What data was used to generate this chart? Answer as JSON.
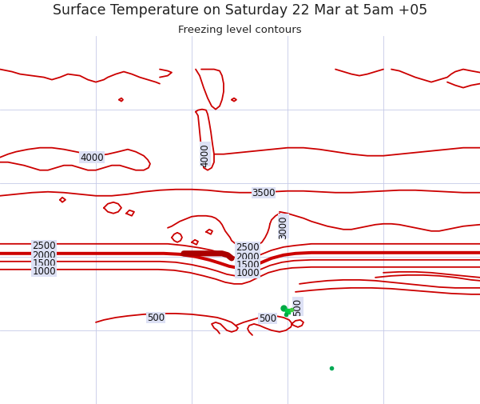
{
  "title": "Surface Temperature on Saturday 22 Mar at 5am +05",
  "subtitle": "Freezing level contours",
  "bg_color": "#dde1f5",
  "contour_color": "#cc0000",
  "contour_lw": 1.3,
  "grid_color": "#c5cae8",
  "title_fontsize": 12.5,
  "subtitle_fontsize": 9.5,
  "title_color": "#222222",
  "header_bg": "#ffffff"
}
